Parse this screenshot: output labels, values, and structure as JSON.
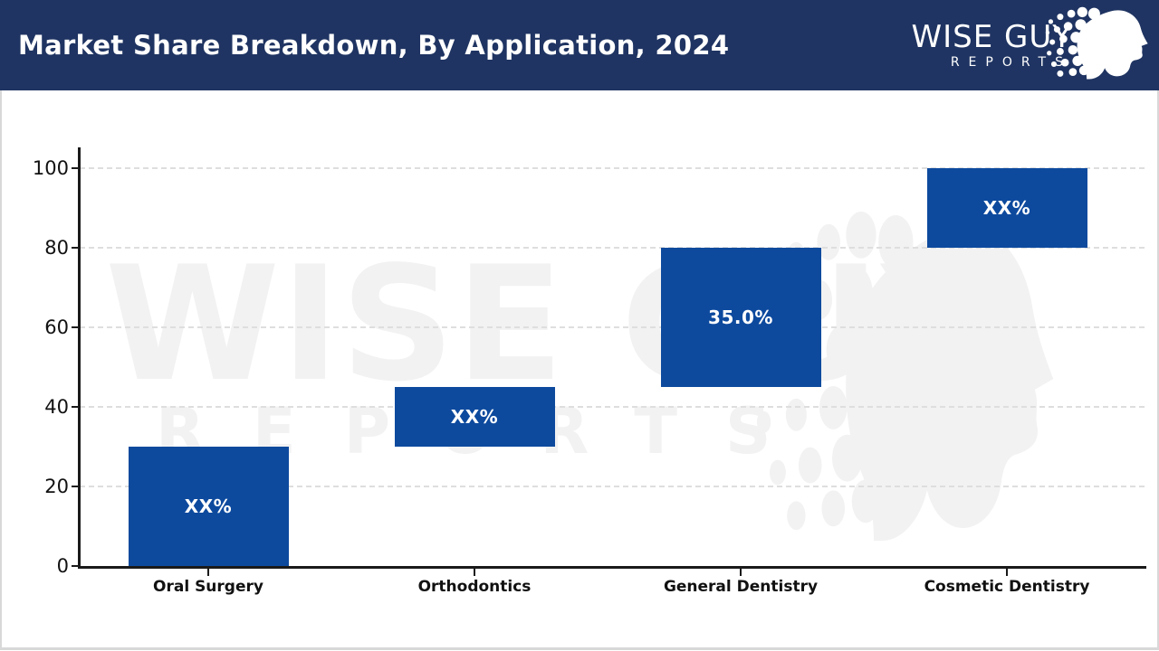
{
  "header": {
    "title": "Market Share Breakdown, By Application, 2024",
    "logo": {
      "wordmark": "WISE GUY",
      "subtext": "REPORTS",
      "face_icon": "head-profile-dots-icon"
    }
  },
  "watermark": {
    "wordmark": "WISE GUY",
    "subtext": "REPORTS",
    "face_icon": "head-profile-dots-icon"
  },
  "colors": {
    "header_bg": "#1F3462",
    "bar_fill": "#0D4A9E",
    "bar_label": "#FFFFFF",
    "axis": "#1A1A1A",
    "tick_label": "#111111",
    "gridline": "#DEDEDE",
    "watermark": "#F2F2F2",
    "frame_border": "#D8D8D8",
    "background": "#FFFFFF"
  },
  "chart_data": {
    "type": "bar",
    "variant": "waterfall",
    "title": "Market Share Breakdown, By Application, 2024",
    "categories": [
      "Oral Surgery",
      "Orthodontics",
      "General Dentistry",
      "Cosmetic Dentistry"
    ],
    "segments": [
      {
        "category": "Oral Surgery",
        "start": 0,
        "end": 30,
        "label": "XX%"
      },
      {
        "category": "Orthodontics",
        "start": 30,
        "end": 45,
        "label": "XX%"
      },
      {
        "category": "General Dentistry",
        "start": 45,
        "end": 80,
        "label": "35.0%"
      },
      {
        "category": "Cosmetic Dentistry",
        "start": 80,
        "end": 100,
        "label": "XX%"
      }
    ],
    "xlabel": "",
    "ylabel": "",
    "ylim": [
      0,
      100
    ],
    "yticks": [
      0,
      20,
      40,
      60,
      80,
      100
    ],
    "grid": "horizontal-dashed",
    "legend": "none"
  }
}
